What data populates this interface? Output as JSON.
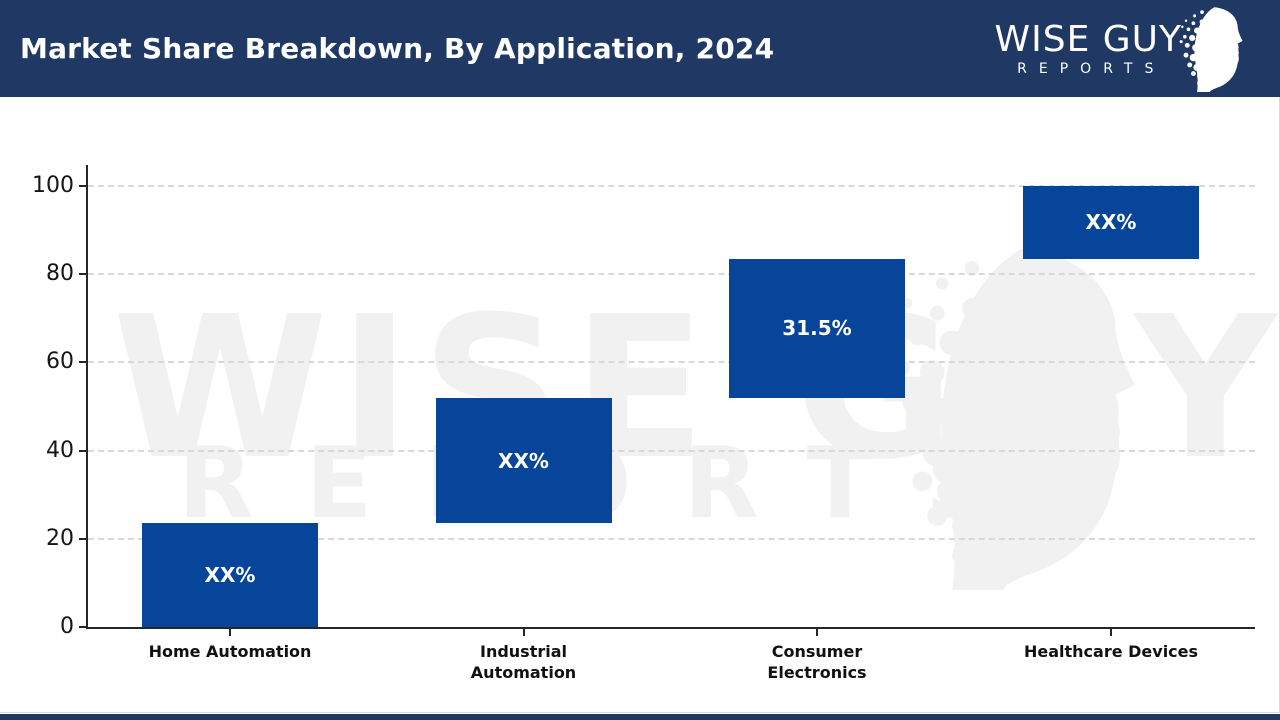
{
  "header": {
    "title": "Market Share Breakdown, By Application, 2024",
    "logo": {
      "line1": "WISE GUY",
      "line2": "REPORTS"
    }
  },
  "watermark": {
    "line1": "WISE GUY",
    "line2": "REPORTS"
  },
  "chart_data": {
    "type": "bar",
    "subtype": "floating-waterfall",
    "title": "Market Share Breakdown, By Application, 2024",
    "categories": [
      "Home Automation",
      "Industrial Automation",
      "Consumer Electronics",
      "Healthcare Devices"
    ],
    "category_label_lines": [
      [
        "Home Automation"
      ],
      [
        "Industrial",
        "Automation"
      ],
      [
        "Consumer",
        "Electronics"
      ],
      [
        "Healthcare Devices"
      ]
    ],
    "bars": [
      {
        "category": "Home Automation",
        "start": 0,
        "end": 23.5,
        "label": "XX%"
      },
      {
        "category": "Industrial Automation",
        "start": 23.5,
        "end": 52,
        "label": "XX%"
      },
      {
        "category": "Consumer Electronics",
        "start": 52,
        "end": 83.5,
        "label": "31.5%"
      },
      {
        "category": "Healthcare Devices",
        "start": 83.5,
        "end": 100,
        "label": "XX%"
      }
    ],
    "yticks": [
      0,
      20,
      40,
      60,
      80,
      100
    ],
    "ylim": [
      0,
      104
    ],
    "grid": {
      "axis": "y",
      "style": "dashed",
      "color": "#d8d8d8"
    },
    "bar_color": "#07459a",
    "value_label_color": "#ffffff",
    "axis_color": "#262626",
    "tick_label_color": "#151515"
  },
  "colors": {
    "header_bg": "#1f3864",
    "footer_bg": "#1f3864",
    "watermark": "#f1f1f1",
    "page_bg": "#ffffff"
  }
}
